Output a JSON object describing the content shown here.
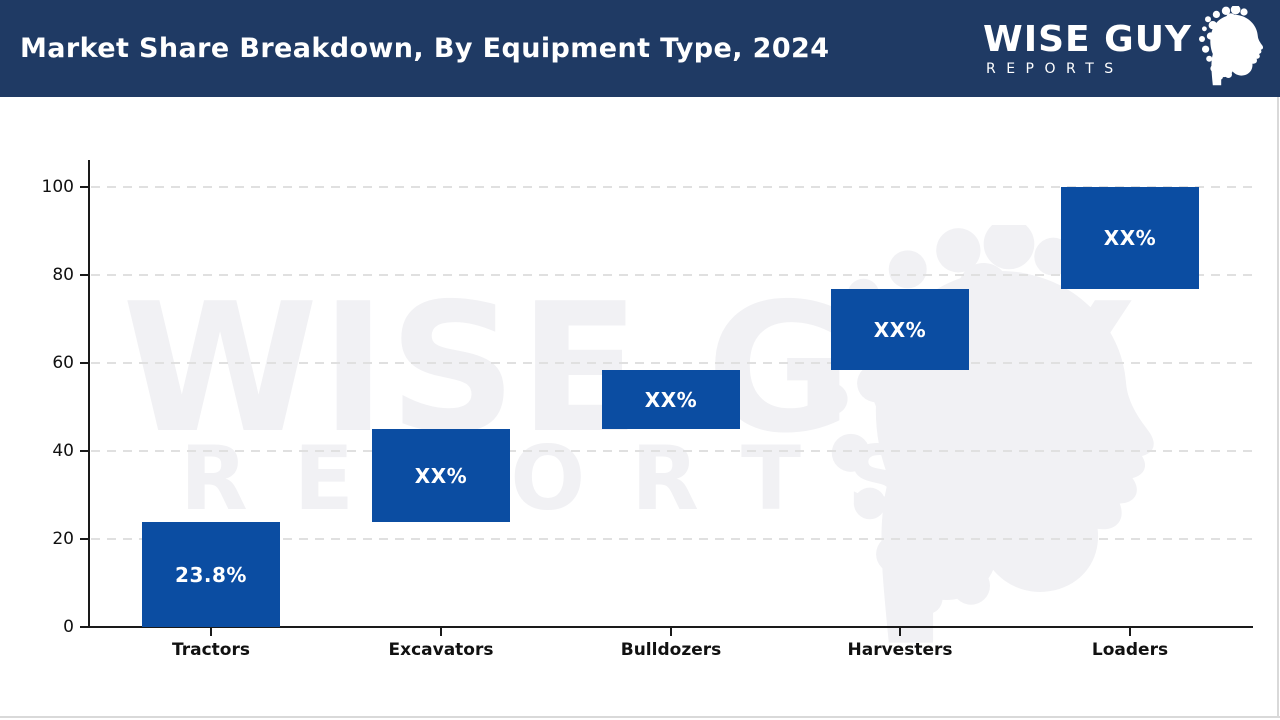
{
  "header": {
    "title": "Market Share Breakdown, By Equipment Type, 2024",
    "logo": {
      "line1": "WISE GUY",
      "line2": "REPORTS"
    }
  },
  "watermark": {
    "line1": "WISE GUY",
    "line2": "REPORTS"
  },
  "chart_data": {
    "type": "bar",
    "subtype": "waterfall",
    "title": "Market Share Breakdown, By Equipment Type, 2024",
    "categories": [
      "Tractors",
      "Excavators",
      "Bulldozers",
      "Harvesters",
      "Loaders"
    ],
    "segments": [
      {
        "category": "Tractors",
        "start": 0,
        "end": 23.8,
        "label": "23.8%"
      },
      {
        "category": "Excavators",
        "start": 23.8,
        "end": 45.0,
        "label": "XX%"
      },
      {
        "category": "Bulldozers",
        "start": 45.0,
        "end": 58.4,
        "label": "XX%"
      },
      {
        "category": "Harvesters",
        "start": 58.4,
        "end": 76.8,
        "label": "XX%"
      },
      {
        "category": "Loaders",
        "start": 76.8,
        "end": 100.0,
        "label": "XX%"
      }
    ],
    "xlabel": "",
    "ylabel": "",
    "ylim": [
      0,
      100
    ],
    "yticks": [
      0,
      20,
      40,
      60,
      80,
      100
    ],
    "grid": "horizontal-dashed",
    "legend": "none"
  },
  "colors": {
    "header_bg": "#1f3a64",
    "header_text": "#ffffff",
    "bar": "#0b4da2",
    "bar_label": "#ffffff",
    "axis": "#1a1a1a",
    "tick_label": "#111111",
    "grid": "#e0e0e0",
    "watermark": "#f1f1f4",
    "border_line": "#d9d9d9"
  }
}
